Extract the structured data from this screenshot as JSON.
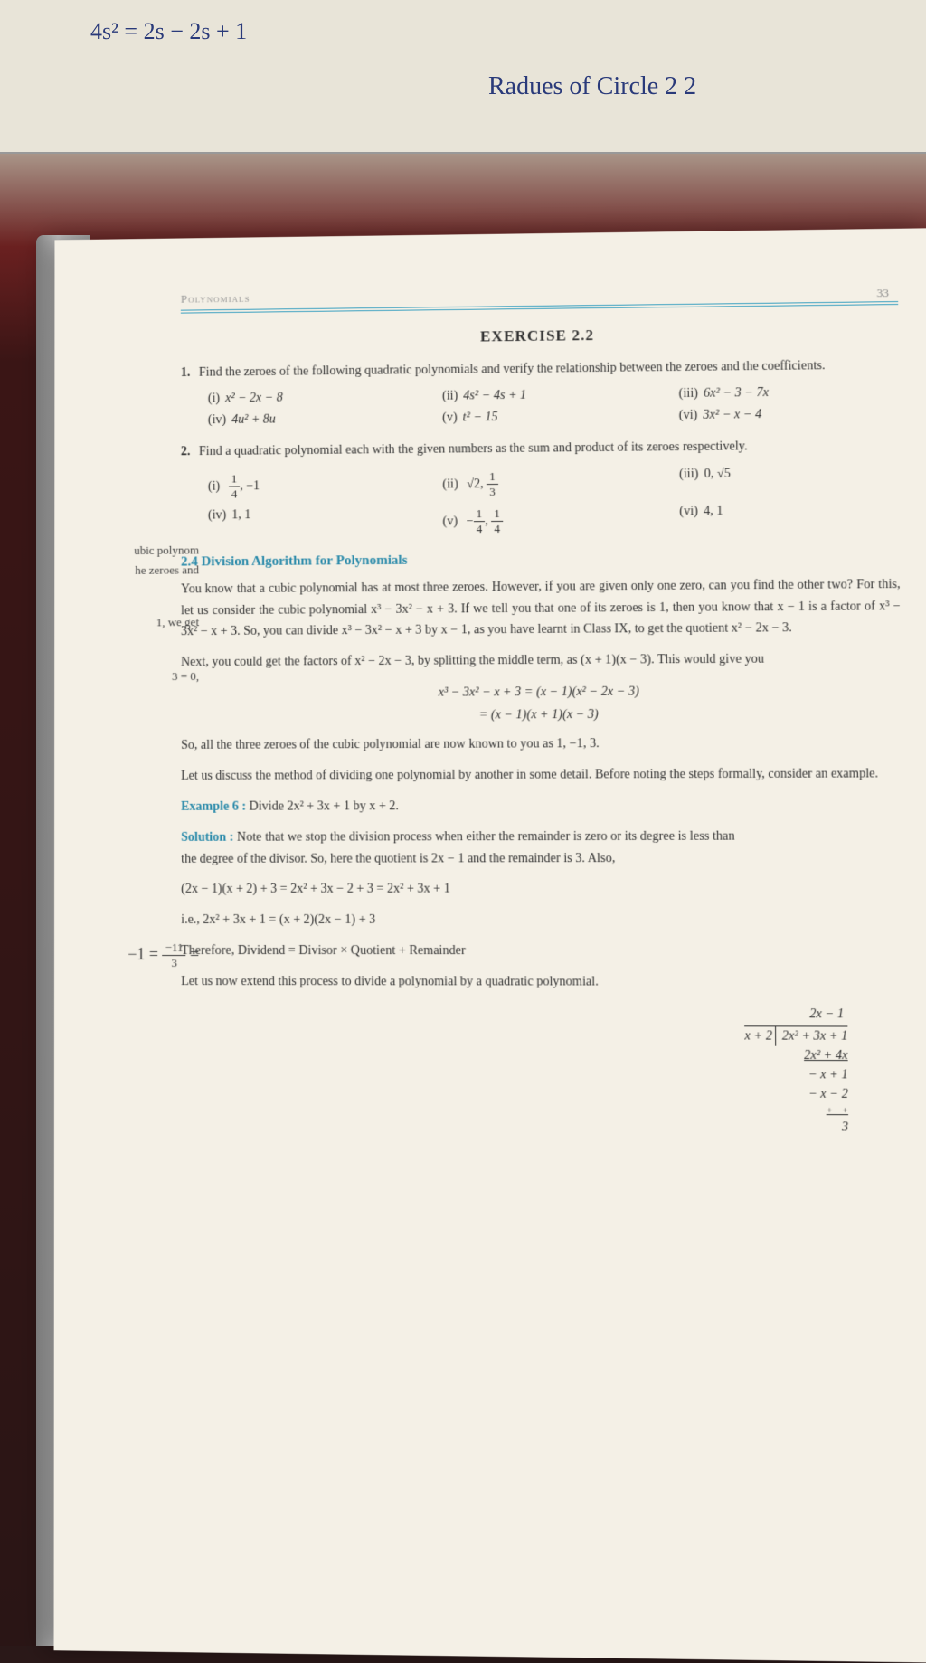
{
  "handwriting": {
    "line1": "4s² = 2s − 2s + 1",
    "line2": "Radues of Circle 2 2"
  },
  "page": {
    "chapter_label": "Polynomials",
    "page_number": "33",
    "exercise_title": "EXERCISE 2.2",
    "q1": {
      "num": "1.",
      "text": "Find the zeroes of the following quadratic polynomials and verify the relationship between the zeroes and the coefficients.",
      "opts": {
        "i": "x² − 2x − 8",
        "ii": "4s² − 4s + 1",
        "iii": "6x² − 3 − 7x",
        "iv": "4u² + 8u",
        "v": "t² − 15",
        "vi": "3x² − x − 4"
      }
    },
    "q2": {
      "num": "2.",
      "text": "Find a quadratic polynomial each with the given numbers as the sum and product of its zeroes respectively.",
      "opts": {
        "i_a": "1",
        "i_b": "4",
        "i_c": ", −1",
        "ii_a": "√2, ",
        "ii_b": "1",
        "ii_c": "3",
        "iii": "0, √5",
        "iv": "1, 1",
        "v_a": "−",
        "v_b1": "1",
        "v_b2": "4",
        "v_c1": "1",
        "v_c2": "4",
        "vi": "4, 1"
      }
    },
    "section": {
      "title": "2.4 Division Algorithm for Polynomials",
      "p1": "You know that a cubic polynomial has at most three zeroes. However, if you are given only one zero, can you find the other two? For this, let us consider the cubic polynomial x³ − 3x² − x + 3. If we tell you that one of its zeroes is 1, then you know that x − 1 is a factor of x³ − 3x² − x + 3. So, you can divide x³ − 3x² − x + 3 by x − 1, as you have learnt in Class IX, to get the quotient x² − 2x − 3.",
      "p2": "Next, you could get the factors of x² − 2x − 3, by splitting the middle term, as (x + 1)(x − 3). This would give you",
      "eq1": "x³ − 3x² − x + 3 = (x − 1)(x² − 2x − 3)",
      "eq2": "= (x − 1)(x + 1)(x − 3)",
      "p3": "So, all the three zeroes of the cubic polynomial are now known to you as 1, −1, 3.",
      "p4": "Let us discuss the method of dividing one polynomial by another in some detail. Before noting the steps formally, consider an example."
    },
    "example": {
      "label": "Example 6 :",
      "text": "Divide 2x² + 3x + 1 by x + 2.",
      "sol_label": "Solution :",
      "sol_text": "Note that we stop the division process when either the remainder is zero or its degree is less than the degree of the divisor. So, here the quotient is 2x − 1 and the remainder is 3. Also,",
      "line1": "(2x − 1)(x + 2) + 3 = 2x² + 3x − 2 + 3 = 2x² + 3x + 1",
      "line2": "i.e.,   2x² + 3x + 1 = (x + 2)(2x − 1) + 3",
      "p5": "Therefore, Dividend = Divisor × Quotient + Remainder",
      "p6": "Let us now extend this process to divide a polynomial by a quadratic polynomial."
    },
    "margin": {
      "m1": "ubic polynom",
      "m2": "he zeroes and",
      "m3": "1, we get",
      "m4": "3 = 0,",
      "m5": "−1 = "
    },
    "longdiv": {
      "quotient": "2x − 1",
      "divisor": "x + 2",
      "dividend": "2x² + 3x + 1",
      "r1": "2x² + 4x",
      "r2": "− x + 1",
      "r3": "− x − 2",
      "r3s": "+    +",
      "rem": "3"
    }
  }
}
